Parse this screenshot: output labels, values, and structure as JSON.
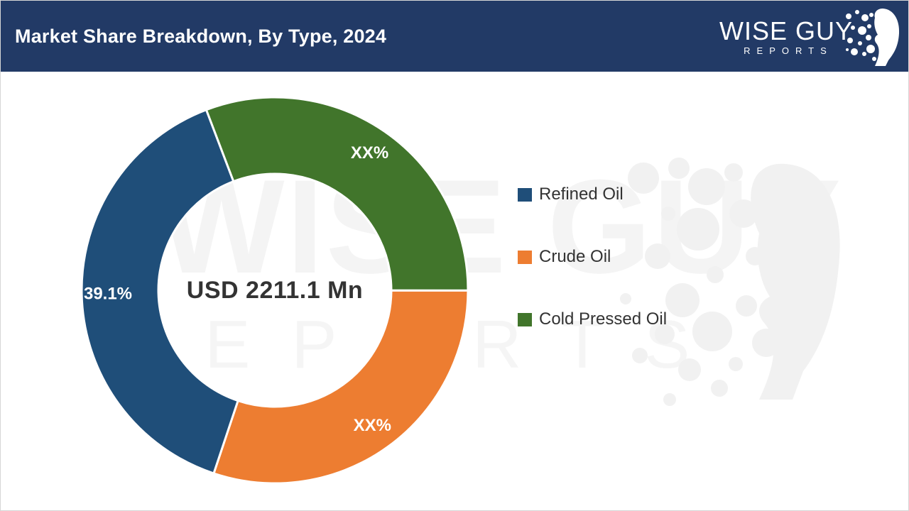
{
  "header": {
    "title": "Market Share Breakdown, By Type, 2024",
    "bg_color": "#223A66",
    "logo": {
      "line1": "WISE GUY",
      "line2": "REPORTS"
    }
  },
  "chart_data": {
    "type": "pie",
    "subtype": "donut",
    "title": "Market Share Breakdown, By Type, 2024",
    "center_label": "USD 2211.1 Mn",
    "start_angle_deg": -20.8,
    "legend_position": "right",
    "slices": [
      {
        "name": "Cold Pressed Oil",
        "value_pct": 30.8,
        "label": "XX%",
        "color": "#41752B"
      },
      {
        "name": "Crude Oil",
        "value_pct": 30.1,
        "label": "XX%",
        "color": "#ED7D31"
      },
      {
        "name": "Refined Oil",
        "value_pct": 39.1,
        "label": "39.1%",
        "color": "#1F4E79"
      }
    ],
    "legend": [
      {
        "label": "Refined Oil",
        "color": "#1F4E79"
      },
      {
        "label": "Crude Oil",
        "color": "#ED7D31"
      },
      {
        "label": "Cold Pressed Oil",
        "color": "#41752B"
      }
    ]
  },
  "watermark": {
    "line1": "WISE GUY",
    "line2": "REPORTS"
  }
}
